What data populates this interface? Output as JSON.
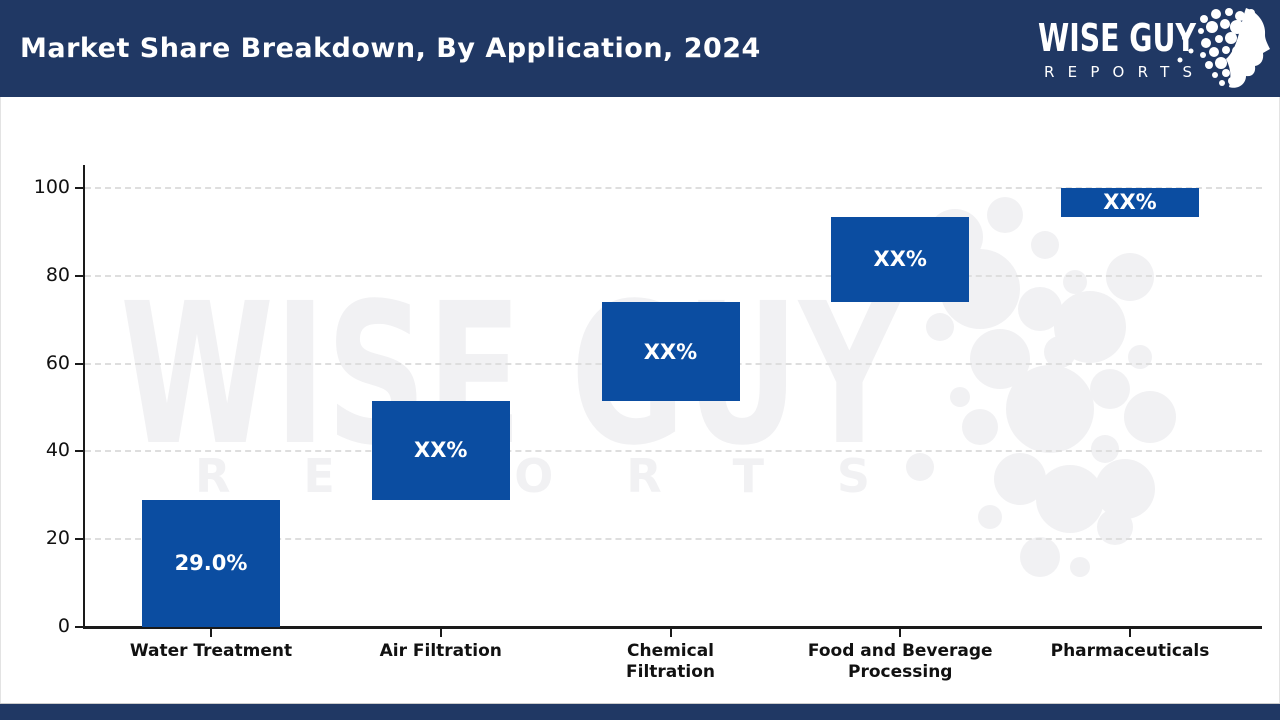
{
  "header": {
    "title": "Market Share Breakdown, By Application, 2024"
  },
  "logo": {
    "line1": "WISE GUY",
    "line2": "REPORTS"
  },
  "watermark": {
    "line1": "WISE GUY",
    "line2": "REPORTS"
  },
  "chart_data": {
    "type": "bar",
    "variant": "waterfall",
    "title": "Market Share Breakdown, By Application, 2024",
    "xlabel": "",
    "ylabel": "",
    "categories": [
      "Water Treatment",
      "Air Filtration",
      "Chemical\nFiltration",
      "Food and Beverage\nProcessing",
      "Pharmaceuticals"
    ],
    "segments": [
      {
        "category": "Water Treatment",
        "start": 0,
        "end": 29,
        "label": "29.0%"
      },
      {
        "category": "Air Filtration",
        "start": 29,
        "end": 51.5,
        "label": "XX%"
      },
      {
        "category": "Chemical Filtration",
        "start": 51.5,
        "end": 74,
        "label": "XX%"
      },
      {
        "category": "Food and Beverage Processing",
        "start": 74,
        "end": 93.5,
        "label": "XX%"
      },
      {
        "category": "Pharmaceuticals",
        "start": 93.5,
        "end": 100,
        "label": "XX%"
      }
    ],
    "ylim": [
      0,
      100
    ],
    "yticks": [
      0,
      20,
      40,
      60,
      80,
      100
    ],
    "grid": "horizontal-dashed",
    "legend": "none",
    "bar_color": "#0b4da1",
    "bar_label_color": "#ffffff"
  },
  "colors": {
    "header_bg": "#203864",
    "footer_bg": "#203864",
    "bar": "#0b4da1",
    "grid": "#dedede",
    "axis": "#1a1a1a",
    "watermark": "#f1f1f3",
    "text_dark": "#111111",
    "white": "#ffffff"
  }
}
